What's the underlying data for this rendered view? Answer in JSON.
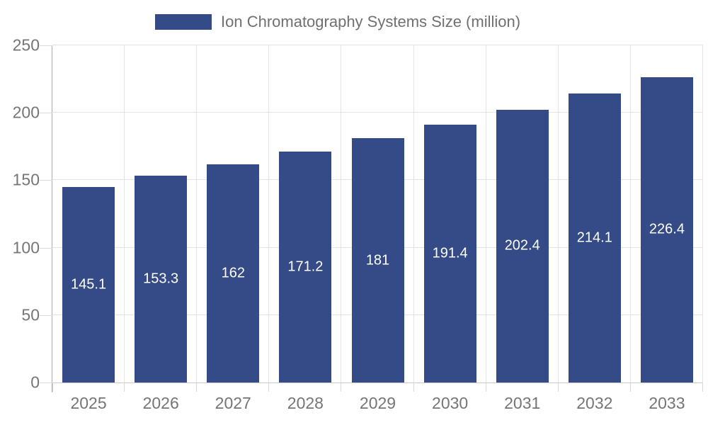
{
  "chart_data": {
    "type": "bar",
    "title": "Ion Chromatography Systems Size (million)",
    "categories": [
      "2025",
      "2026",
      "2027",
      "2028",
      "2029",
      "2030",
      "2031",
      "2032",
      "2033"
    ],
    "values": [
      145.1,
      153.3,
      162,
      171.2,
      181,
      191.4,
      202.4,
      214.1,
      226.4
    ],
    "xlabel": "",
    "ylabel": "",
    "ylim": [
      0,
      250
    ],
    "ytick_interval": 50,
    "yticks": [
      0,
      50,
      100,
      150,
      200,
      250
    ],
    "grid": true,
    "legend_position": "top",
    "bar_color": "#344b87",
    "value_label_color": "#ffffff",
    "axis_text_color": "#757575",
    "gridline_color": "#e3e3e3"
  }
}
